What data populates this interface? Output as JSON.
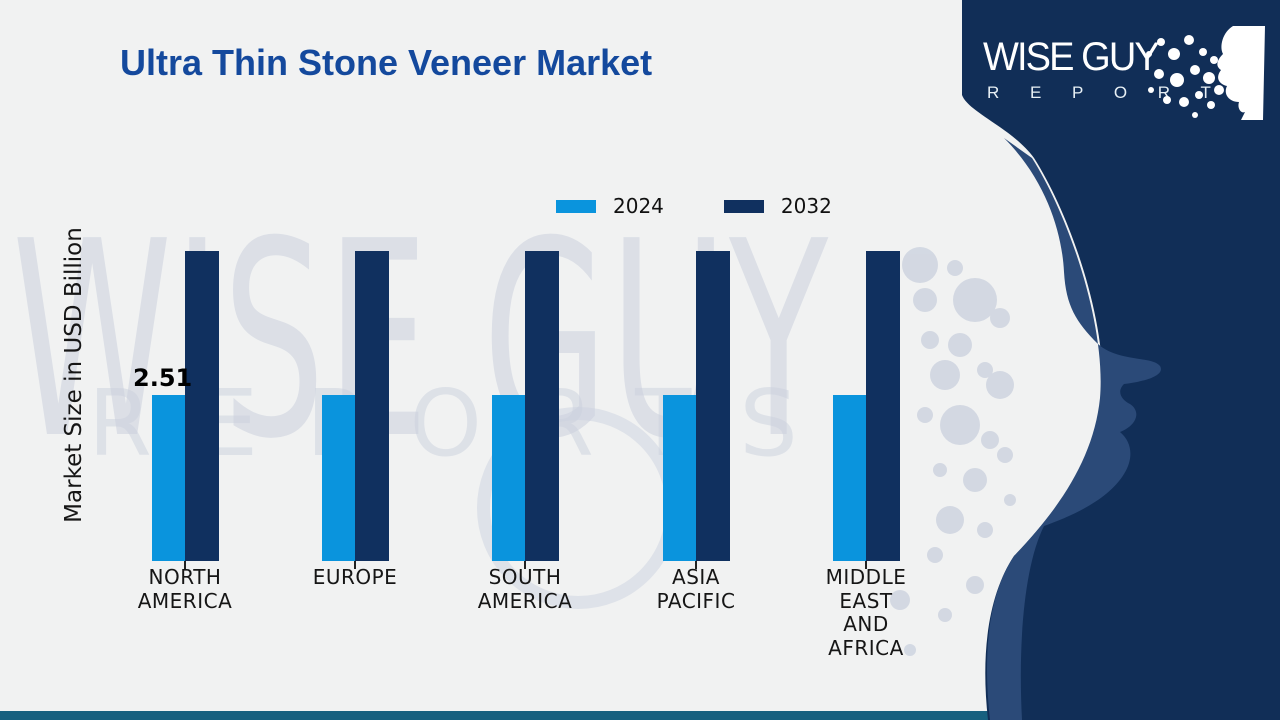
{
  "title": "Ultra Thin Stone Veneer Market",
  "y_axis_label": "Market Size in USD Billion",
  "value_label": "2.51",
  "legend": {
    "items": [
      {
        "label": "2024",
        "color": "#0a94dd"
      },
      {
        "label": "2032",
        "color": "#10305f"
      }
    ]
  },
  "chart_data": {
    "type": "bar",
    "title": "Ultra Thin Stone Veneer Market",
    "xlabel": "",
    "ylabel": "Market Size in USD Billion",
    "categories": [
      "NORTH AMERICA",
      "EUROPE",
      "SOUTH AMERICA",
      "ASIA PACIFIC",
      "MIDDLE EAST AND AFRICA"
    ],
    "category_lines": [
      [
        "NORTH",
        "AMERICA"
      ],
      [
        "EUROPE"
      ],
      [
        "SOUTH",
        "AMERICA"
      ],
      [
        "ASIA",
        "PACIFIC"
      ],
      [
        "MIDDLE",
        "EAST",
        "AND",
        "AFRICA"
      ]
    ],
    "series": [
      {
        "name": "2024",
        "color": "#0a94dd",
        "values": [
          2.51,
          2.51,
          2.51,
          2.51,
          2.51
        ]
      },
      {
        "name": "2032",
        "color": "#10305f",
        "values": [
          4.69,
          4.69,
          4.69,
          4.69,
          4.69
        ]
      }
    ],
    "data_labels": [
      {
        "series": "2024",
        "category": "NORTH AMERICA",
        "text": "2.51"
      }
    ],
    "ylim": [
      0,
      5
    ],
    "grid": false,
    "legend_position": "top-center"
  },
  "logo": {
    "name": "WISE GUY",
    "sub": "R E P O R T S"
  },
  "watermark": {
    "name": "WISE GUY",
    "sub": "REPORTS"
  },
  "colors": {
    "background": "#f1f2f2",
    "title": "#14499d",
    "bar_2024": "#0a94dd",
    "bar_2032": "#10305f",
    "panel_navy": "#112e57",
    "panel_face": "#2b4a78",
    "footer_teal": "#17607f",
    "watermark": "#cbd1de"
  }
}
